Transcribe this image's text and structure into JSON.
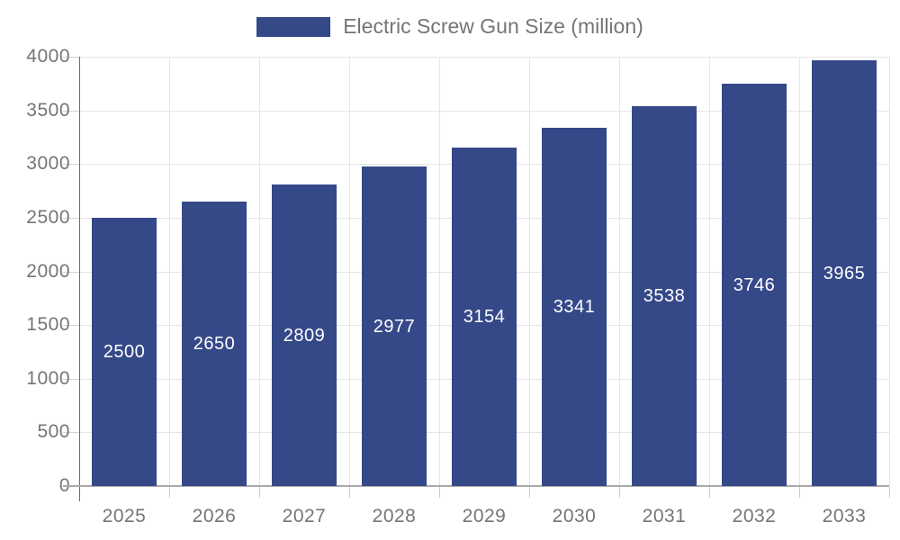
{
  "legend": {
    "label": "Electric Screw Gun Size (million)"
  },
  "colors": {
    "bar": "#354888",
    "grid": "#e5e5e8",
    "axis": "#6b6b6b",
    "baseline": "#ababab",
    "tick_text": "#757575",
    "legend_text": "#757575",
    "value_text": "#ffffff",
    "ytick_mark": "#d2d2d8",
    "xtick_mark": "#c6cada"
  },
  "chart_data": {
    "type": "bar",
    "title": "Electric Screw Gun Size (million)",
    "series": [
      {
        "name": "Electric Screw Gun Size (million)",
        "values": [
          2500,
          2650,
          2809,
          2977,
          3154,
          3341,
          3538,
          3746,
          3965
        ]
      }
    ],
    "categories": [
      "2025",
      "2026",
      "2027",
      "2028",
      "2029",
      "2030",
      "2031",
      "2032",
      "2033"
    ],
    "xlabel": "",
    "ylabel": "",
    "ylim": [
      0,
      4000
    ],
    "yticks": [
      0,
      500,
      1000,
      1500,
      2000,
      2500,
      3000,
      3500,
      4000
    ],
    "grid": true,
    "legend_position": "top",
    "value_label_position": "inside-center"
  }
}
